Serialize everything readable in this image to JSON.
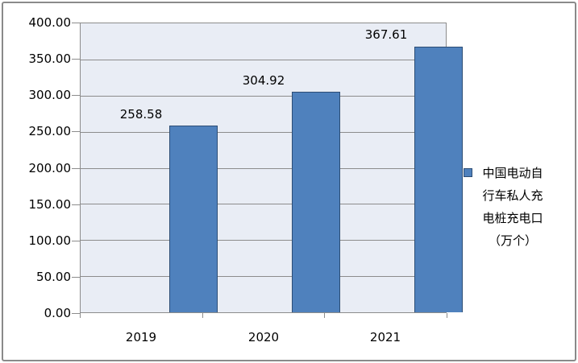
{
  "chart_data": {
    "type": "bar",
    "title": "",
    "categories": [
      "2019",
      "2020",
      "2021"
    ],
    "series": [
      {
        "name": "中国电动自行车私人充电桩充电口（万个）",
        "values": [
          258.58,
          304.92,
          367.61
        ]
      }
    ],
    "data_labels": [
      "258.58",
      "304.92",
      "367.61"
    ],
    "xlabel": "",
    "ylabel": "",
    "ylim": [
      0,
      400
    ],
    "ytick_step": 50,
    "yticks": [
      "400.00",
      "350.00",
      "300.00",
      "250.00",
      "200.00",
      "150.00",
      "100.00",
      "50.00",
      "0.00"
    ],
    "grid": true,
    "legend_position": "right",
    "legend_lines": [
      "中国电动自",
      "行车私人充",
      "电桩充电口",
      "（万个）"
    ],
    "colors": {
      "bar_fill": "#4f81bd",
      "bar_border": "#2c4d75",
      "plot_background": "#e9edf5",
      "gridline": "#8c8c8c",
      "frame_border": "#8a8a8a",
      "text": "#000000"
    }
  }
}
